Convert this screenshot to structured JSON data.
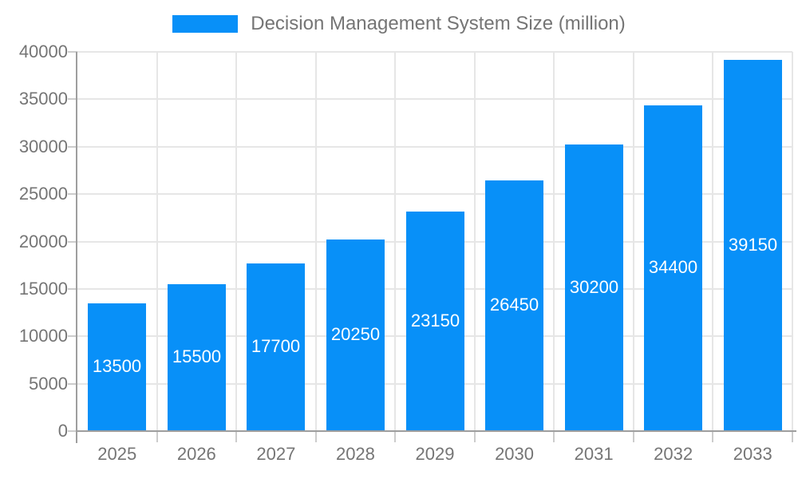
{
  "colors": {
    "bar": "#0890F8",
    "grid": "#E6E6E6",
    "axis": "#9E9E9E",
    "tick": "#CCCCCC",
    "text": "#757575",
    "value_label": "#FFFFFF",
    "background": "#FFFFFF"
  },
  "legend": {
    "label": "Decision Management System Size (million)"
  },
  "chart_data": {
    "type": "bar",
    "title": "Decision Management System Size (million)",
    "categories": [
      "2025",
      "2026",
      "2027",
      "2028",
      "2029",
      "2030",
      "2031",
      "2032",
      "2033"
    ],
    "values": [
      13500,
      15500,
      17700,
      20250,
      23150,
      26450,
      30200,
      34400,
      39150
    ],
    "series": [
      {
        "name": "Decision Management System Size (million)",
        "values": [
          13500,
          15500,
          17700,
          20250,
          23150,
          26450,
          30200,
          34400,
          39150
        ]
      }
    ],
    "xlabel": "",
    "ylabel": "",
    "ylim": [
      0,
      40000
    ],
    "yticks": [
      0,
      5000,
      10000,
      15000,
      20000,
      25000,
      30000,
      35000,
      40000
    ],
    "grid": "horizontal and vertical category separators",
    "legend_position": "top-center",
    "value_label_position": "inside-center"
  }
}
